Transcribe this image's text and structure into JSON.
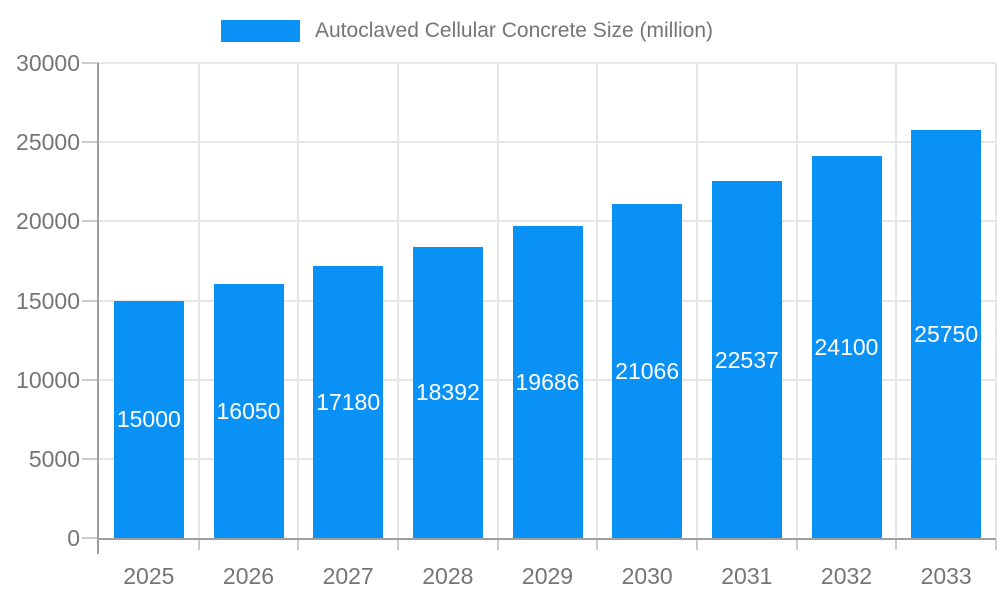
{
  "legend": {
    "label": "Autoclaved Cellular Concrete Size (million)"
  },
  "chart_data": {
    "type": "bar",
    "title": "Autoclaved Cellular Concrete Size (million)",
    "series_name": "Autoclaved Cellular Concrete Size (million)",
    "categories": [
      "2025",
      "2026",
      "2027",
      "2028",
      "2029",
      "2030",
      "2031",
      "2032",
      "2033"
    ],
    "values": [
      15000,
      16050,
      17180,
      18392,
      19686,
      21066,
      22537,
      24100,
      25750
    ],
    "value_labels": [
      15000,
      16050,
      17180,
      18392,
      19686,
      21066,
      22537,
      24100,
      25750
    ],
    "xlabel": "",
    "ylabel": "",
    "ylim": [
      0,
      30000
    ],
    "yticks": [
      0,
      5000,
      10000,
      15000,
      20000,
      25000,
      30000
    ],
    "grid": true,
    "legend_position": "top-center",
    "value_label_position": "inside-center"
  },
  "colors": {
    "bar": "#0a91f5",
    "axis_line": "#9e9e9e",
    "tick": "#cccccc",
    "gridline": "#e6e6e6",
    "axis_text": "#757575",
    "value_text": "#ffffff"
  }
}
